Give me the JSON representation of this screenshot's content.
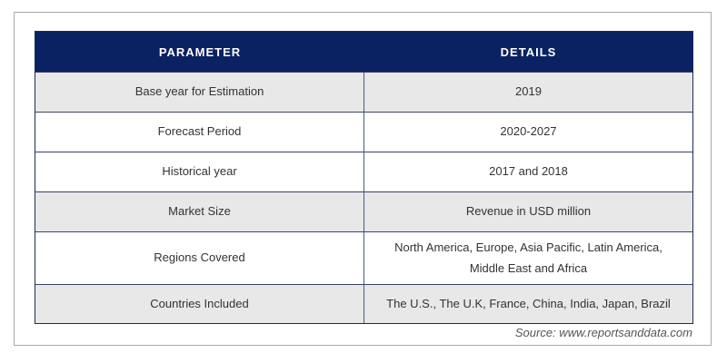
{
  "chart_data": {
    "type": "table",
    "columns": [
      "PARAMETER",
      "DETAILS"
    ],
    "rows": [
      [
        "Base year for Estimation",
        "2019"
      ],
      [
        "Forecast Period",
        "2020-2027"
      ],
      [
        "Historical year",
        "2017 and 2018"
      ],
      [
        "Market Size",
        "Revenue in USD million"
      ],
      [
        "Regions Covered",
        "North America, Europe, Asia Pacific, Latin America,\nMiddle East and Africa"
      ],
      [
        "Countries Included",
        "The U.S., The  U.K, France, China, India, Japan, Brazil"
      ]
    ]
  },
  "table": {
    "shaded_row_indexes": [
      0,
      3,
      5
    ]
  },
  "source_note": "Source: www.reportsanddata.com",
  "colors": {
    "header_bg": "#0a2162",
    "header_text": "#ffffff",
    "shaded_row_bg": "#e8e8e8",
    "row_bg": "#ffffff",
    "cell_text": "#333333",
    "table_border": "#1d2a5a",
    "row_divider": "#3a4366",
    "column_divider": "#4a5b8f",
    "card_border": "#a9a9a9",
    "source_text": "#555555"
  }
}
